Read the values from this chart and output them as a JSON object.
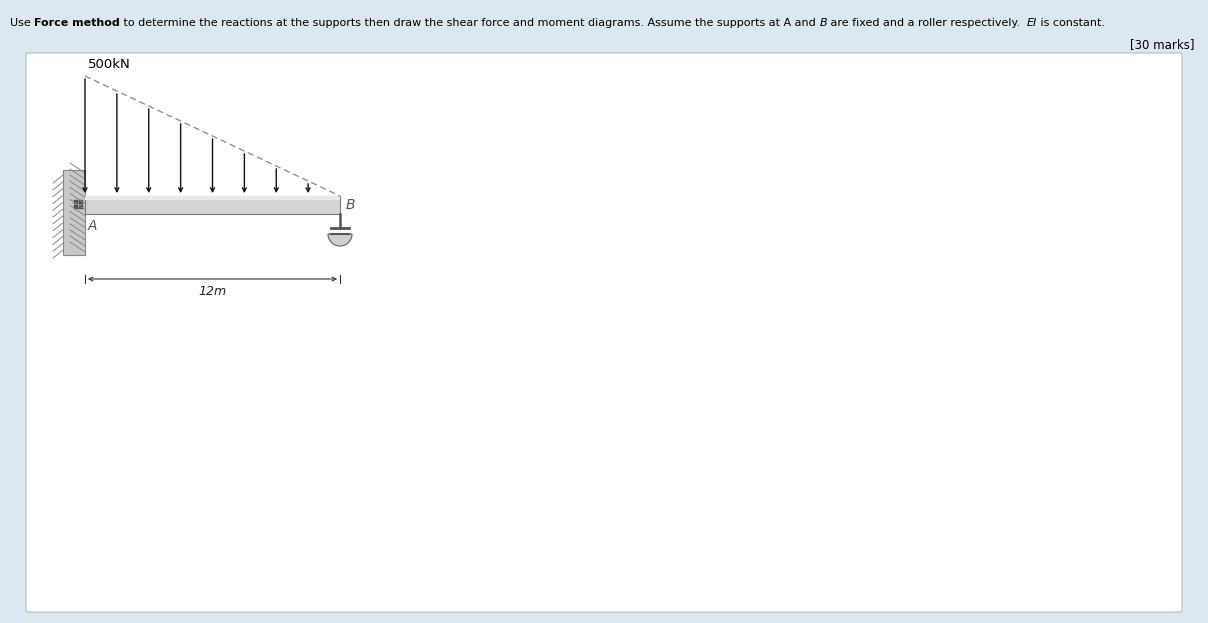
{
  "background_color": "#dce8f0",
  "panel_color": "#ffffff",
  "panel_edge_color": "#bbbbbb",
  "beam_color": "#d4d4d4",
  "beam_edge_color": "#777777",
  "load_color": "#111111",
  "title_text_part1": "Use ",
  "title_bold": "Force method",
  "title_text_part2": " to determine the reactions at the supports then draw the shear force and moment diagrams. Assume the supports at A and ",
  "title_italic_B": "B",
  "title_text_part3": " are fixed and a roller respectively.  ",
  "title_italic_EI": "EI",
  "title_text_part4": " is constant.",
  "marks_text": "[30 marks]",
  "label_500kN": "500kN",
  "label_A": "A",
  "label_B": "B",
  "label_12m": "12m",
  "title_color": "#000000",
  "marks_color": "#000000",
  "annotation_color": "#555566",
  "dim_color": "#333333",
  "dashed_line_color": "#888888",
  "wall_color": "#c0c0c0",
  "title_fontsize": 8.0,
  "label_fontsize": 9.5,
  "marks_fontsize": 8.5,
  "dim_fontsize": 9.0
}
